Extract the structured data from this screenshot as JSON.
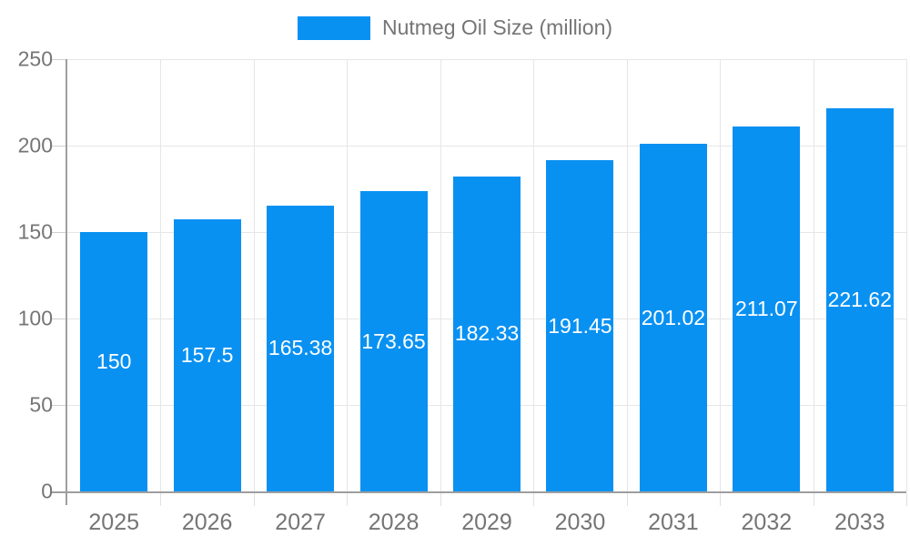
{
  "legend": {
    "label": "Nutmeg Oil Size (million)",
    "swatch_color": "#0991f2"
  },
  "chart_data": {
    "type": "bar",
    "title": "",
    "xlabel": "",
    "ylabel": "",
    "categories": [
      "2025",
      "2026",
      "2027",
      "2028",
      "2029",
      "2030",
      "2031",
      "2032",
      "2033"
    ],
    "series": [
      {
        "name": "Nutmeg Oil Size (million)",
        "values": [
          150,
          157.5,
          165.38,
          173.65,
          182.33,
          191.45,
          201.02,
          211.07,
          221.62
        ]
      }
    ],
    "value_labels": [
      "150",
      "157.5",
      "165.38",
      "173.65",
      "182.33",
      "191.45",
      "201.02",
      "211.07",
      "221.62"
    ],
    "ylim": [
      0,
      250
    ],
    "yticks": [
      0,
      50,
      100,
      150,
      200,
      250
    ],
    "ytick_labels": [
      "0",
      "50",
      "100",
      "150",
      "200",
      "250"
    ],
    "grid": true,
    "legend_position": "top",
    "bar_color": "#0991f2",
    "value_label_color": "#ffffff",
    "axis_text_color": "#757575"
  }
}
